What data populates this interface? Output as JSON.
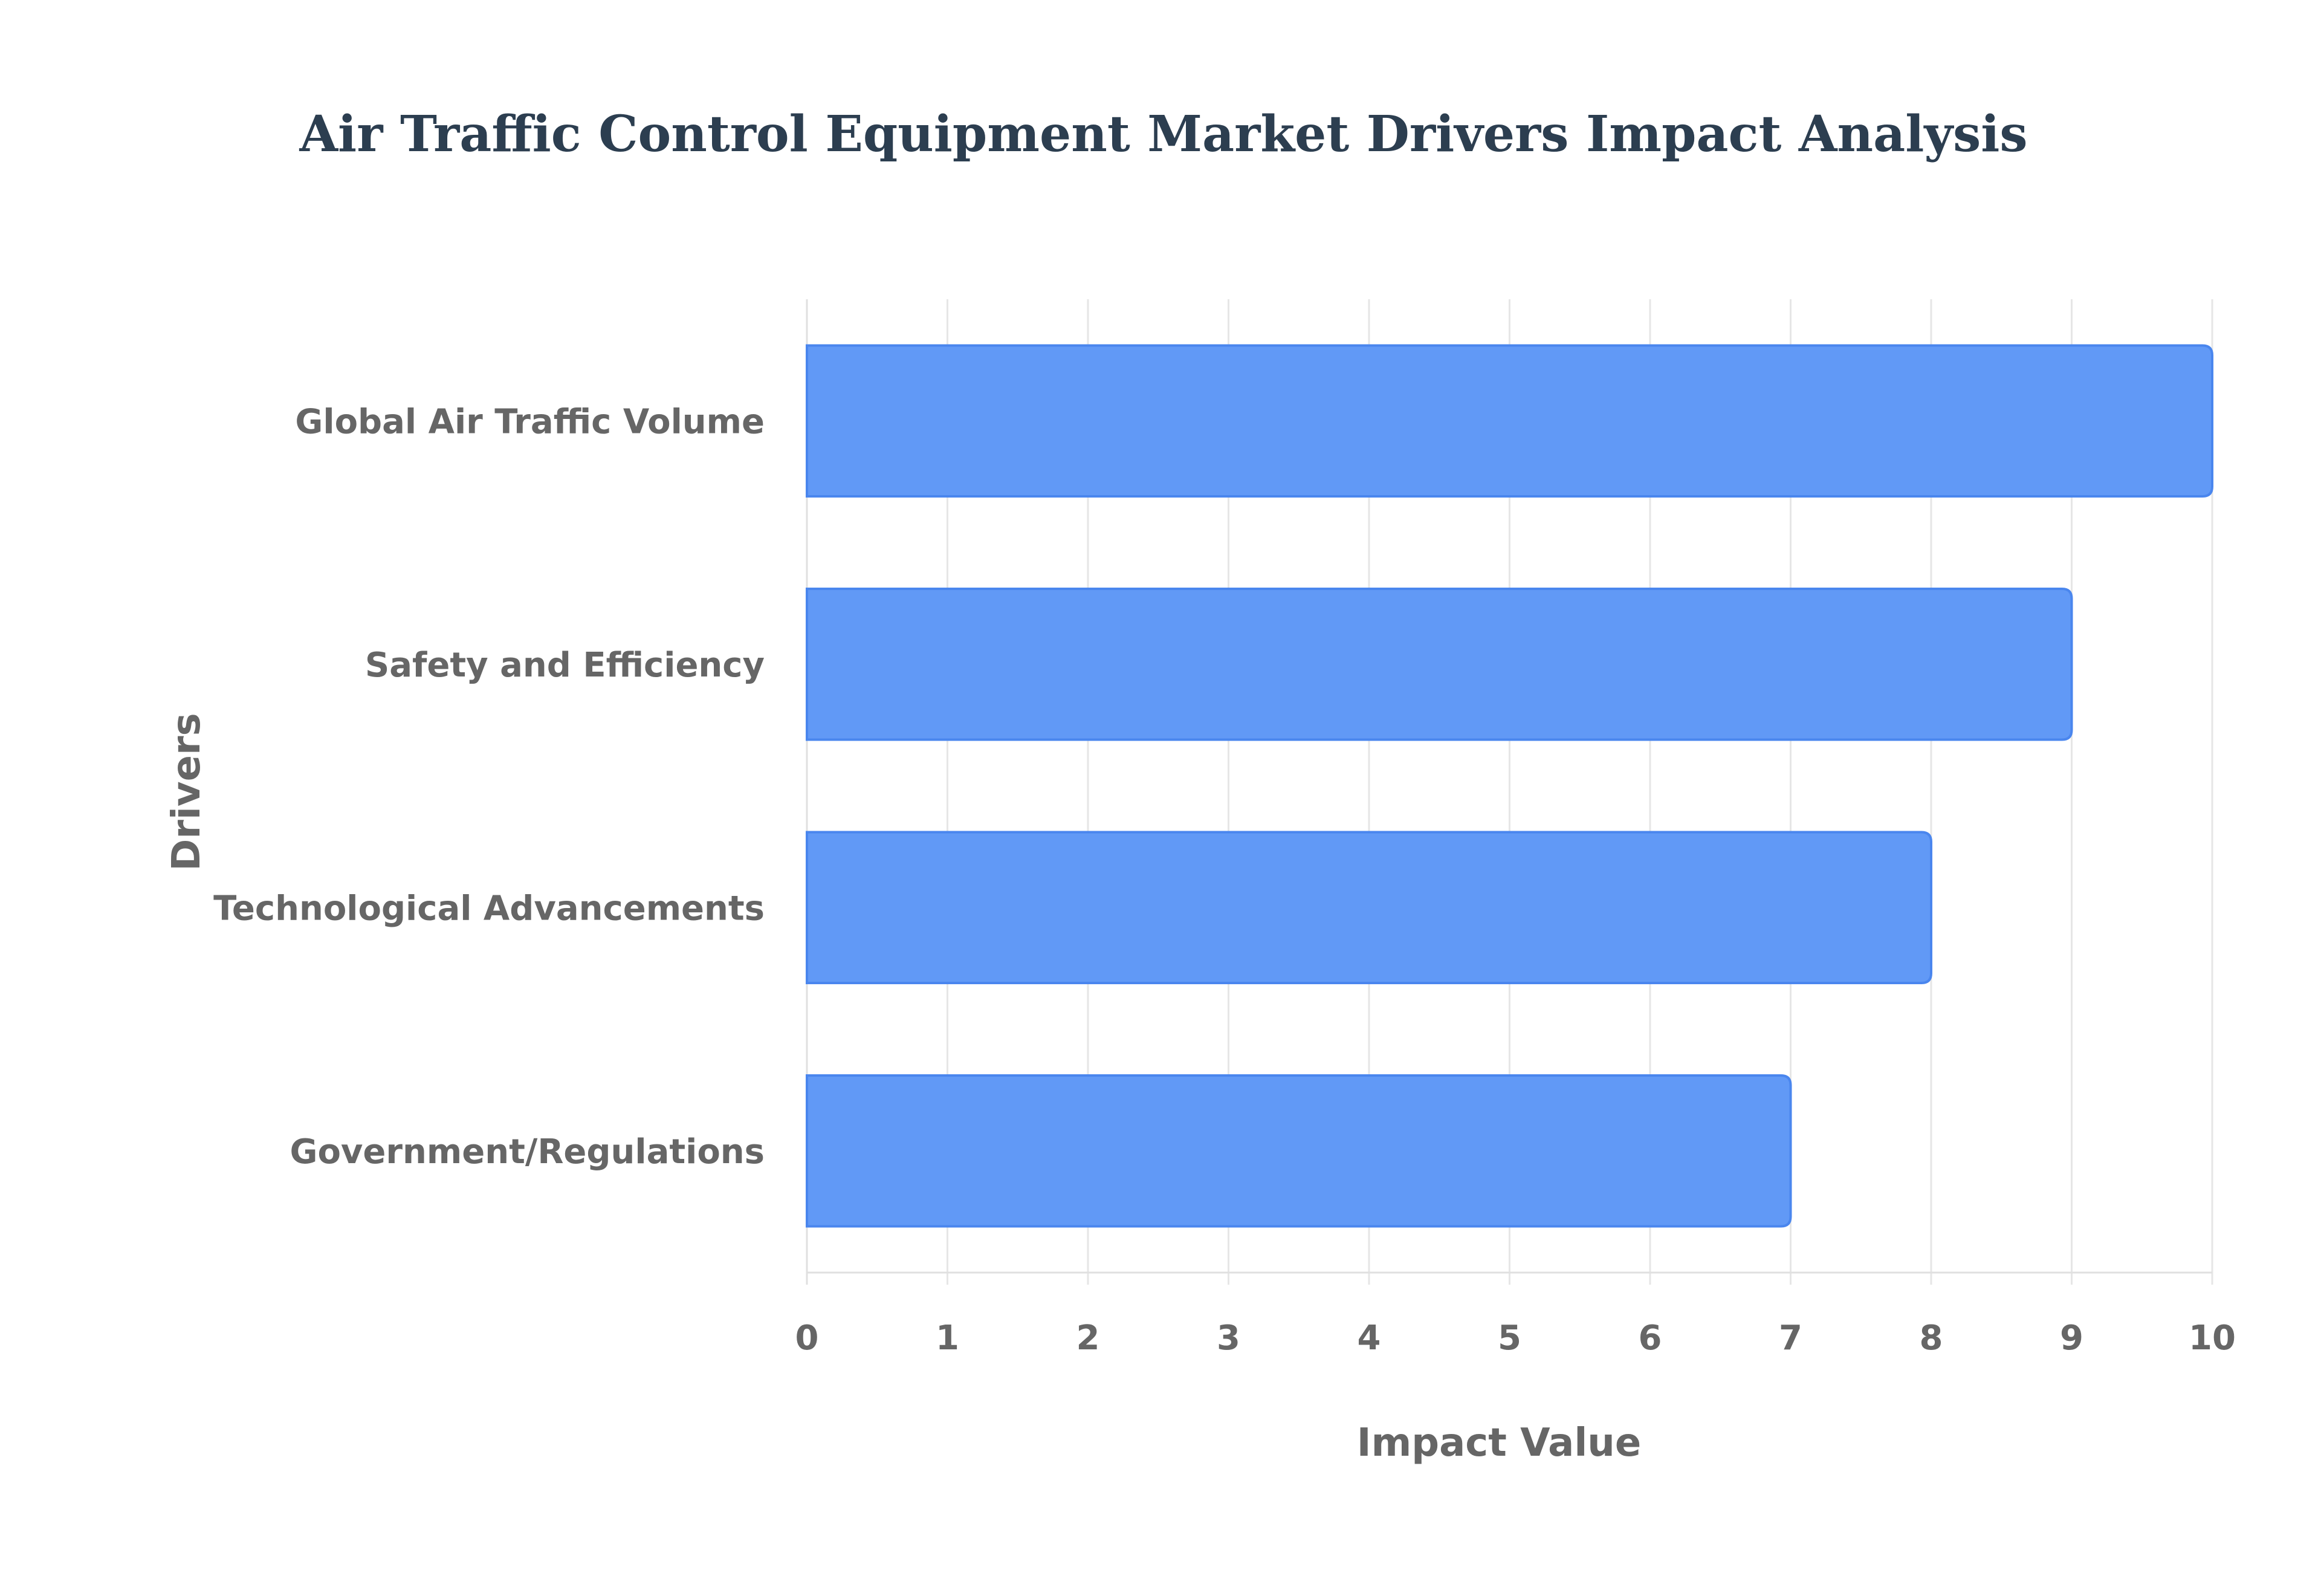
{
  "chart_data": {
    "type": "bar",
    "orientation": "horizontal",
    "title": "Air Traffic Control Equipment Market Drivers Impact Analysis",
    "xlabel": "Impact Value",
    "ylabel": "Drivers",
    "categories": [
      "Global Air Traffic Volume",
      "Safety and Efficiency",
      "Technological Advancements",
      "Government/Regulations"
    ],
    "values": [
      10,
      9,
      8,
      7
    ],
    "xlim": [
      0,
      10
    ],
    "x_ticks": [
      "0",
      "1",
      "2",
      "3",
      "4",
      "5",
      "6",
      "7",
      "8",
      "9",
      "10"
    ],
    "grid": true,
    "legend": "none",
    "colors": {
      "bar_fill": "#6199f6",
      "bar_stroke": "#4a86ee",
      "title": "#2c3e50",
      "tick_text": "#666666",
      "grid": "#e6e6e6"
    }
  }
}
